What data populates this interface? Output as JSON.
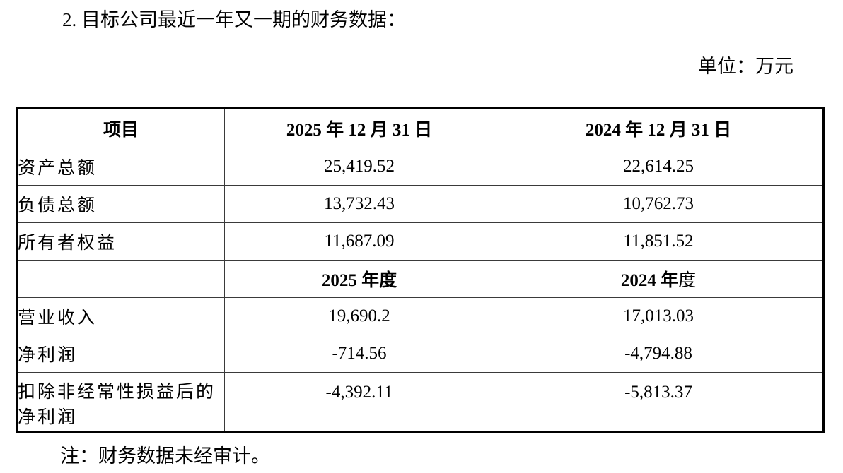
{
  "page": {
    "title": "2. 目标公司最近一年又一期的财务数据：",
    "unit_label": "单位：万元",
    "note": "注：财务数据未经审计。"
  },
  "table": {
    "header": {
      "col1": "项目",
      "col2": "2025 年 12 月 31 日",
      "col3": "2024 年 12 月 31 日"
    },
    "balance_rows": [
      {
        "label": "资产总额",
        "v2025": "25,419.52",
        "v2024": "22,614.25"
      },
      {
        "label": "负债总额",
        "v2025": "13,732.43",
        "v2024": "10,762.73"
      },
      {
        "label": "所有者权益",
        "v2025": "11,687.09",
        "v2024": "11,851.52"
      }
    ],
    "period_header": {
      "col1": "",
      "col2": "2025 年度",
      "col3_bold": "2024 年",
      "col3_regular": "度"
    },
    "income_rows": [
      {
        "label": "营业收入",
        "v2025": "19,690.2",
        "v2024": "17,013.03"
      },
      {
        "label": "净利润",
        "v2025": "-714.56",
        "v2024": "-4,794.88"
      },
      {
        "label": "扣除非经常性损益后的净利润",
        "v2025": "-4,392.11",
        "v2024": "-5,813.37"
      }
    ]
  }
}
